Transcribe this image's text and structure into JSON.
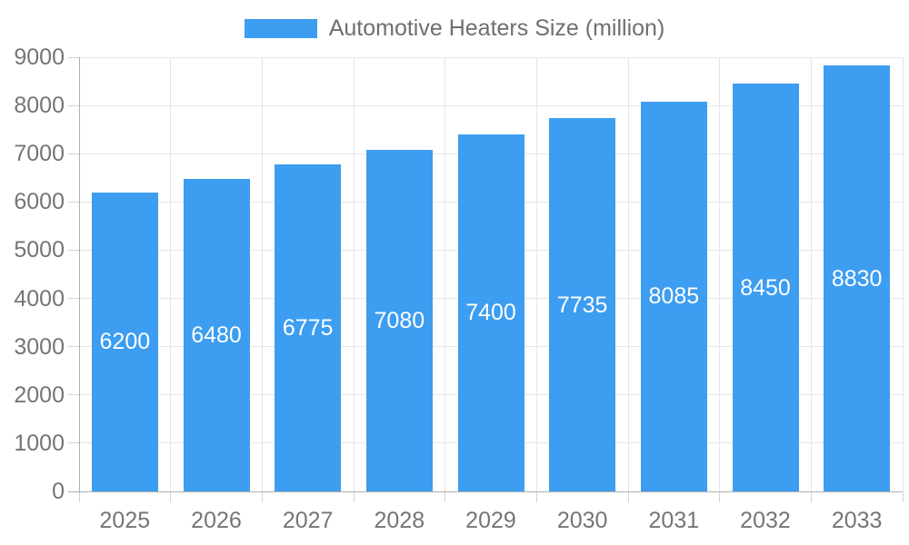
{
  "chart_data": {
    "type": "bar",
    "title": "Automotive Heaters Size (million)",
    "series_name": "Automotive Heaters Size (million)",
    "categories": [
      "2025",
      "2026",
      "2027",
      "2028",
      "2029",
      "2030",
      "2031",
      "2032",
      "2033"
    ],
    "values": [
      6200,
      6480,
      6775,
      7080,
      7400,
      7735,
      8085,
      8450,
      8830
    ],
    "xlabel": "",
    "ylabel": "",
    "ylim": [
      0,
      9000
    ],
    "ytick_step": 1000,
    "yticks": [
      0,
      1000,
      2000,
      3000,
      4000,
      5000,
      6000,
      7000,
      8000,
      9000
    ],
    "grid": true,
    "legend_position": "top",
    "bar_labels_shown": true,
    "colors": {
      "bar": "#3D9DF0",
      "bar_label": "#FFFFFF",
      "axis_label": "#757575",
      "legend_label": "#6F6F6F",
      "gridline": "#E6E6E6",
      "tick": "#D4D4D4",
      "axis_line": "#B0B0B0",
      "background": "#FFFFFF"
    }
  }
}
